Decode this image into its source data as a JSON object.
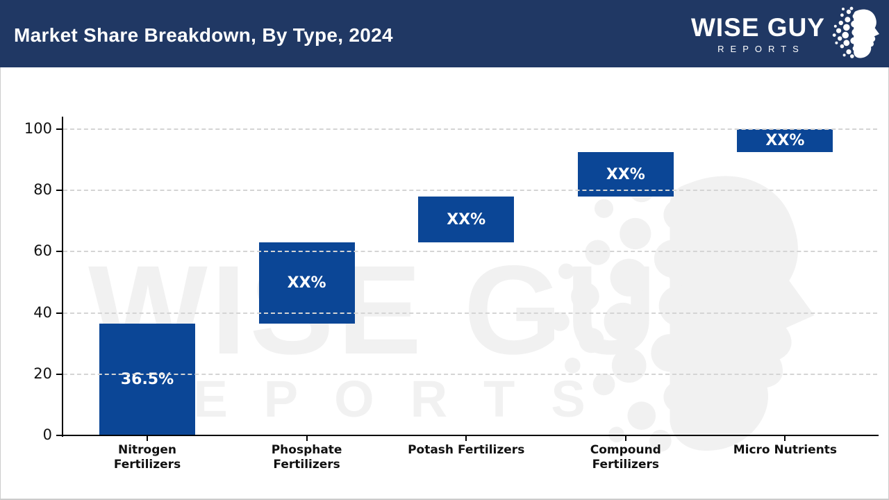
{
  "header": {
    "title": "Market Share Breakdown, By Type, 2024",
    "logo": {
      "line1": "WISE GUY",
      "line2": "REPORTS"
    }
  },
  "watermark": {
    "line1": "WISE GUY",
    "line2": "REPORTS"
  },
  "colors": {
    "header_bg": "#203864",
    "bar": "#0b4696",
    "bar_label": "#ffffff",
    "gridline": "#d4d4d4",
    "axis": "#000000",
    "tick_label": "#111111",
    "watermark": "#f1f1f1"
  },
  "chart_data": {
    "type": "bar",
    "variant": "waterfall",
    "title": "Market Share Breakdown, By Type, 2024",
    "xlabel": "",
    "ylabel": "",
    "ylim": [
      0,
      100
    ],
    "yticks": [
      0,
      20,
      40,
      60,
      80,
      100
    ],
    "grid": "horizontal-dashed",
    "legend": "none",
    "bars": [
      {
        "category_lines": [
          "Nitrogen",
          "Fertilizers"
        ],
        "label": "36.5%",
        "start": 0,
        "end": 36.5,
        "value": 36.5
      },
      {
        "category_lines": [
          "Phosphate",
          "Fertilizers"
        ],
        "label": "XX%",
        "start": 36.5,
        "end": 63,
        "value": 26.5
      },
      {
        "category_lines": [
          "Potash Fertilizers"
        ],
        "label": "XX%",
        "start": 63,
        "end": 78,
        "value": 15
      },
      {
        "category_lines": [
          "Compound",
          "Fertilizers"
        ],
        "label": "XX%",
        "start": 78,
        "end": 92.5,
        "value": 14.5
      },
      {
        "category_lines": [
          "Micro Nutrients"
        ],
        "label": "XX%",
        "start": 92.5,
        "end": 100,
        "value": 7.5
      }
    ]
  }
}
